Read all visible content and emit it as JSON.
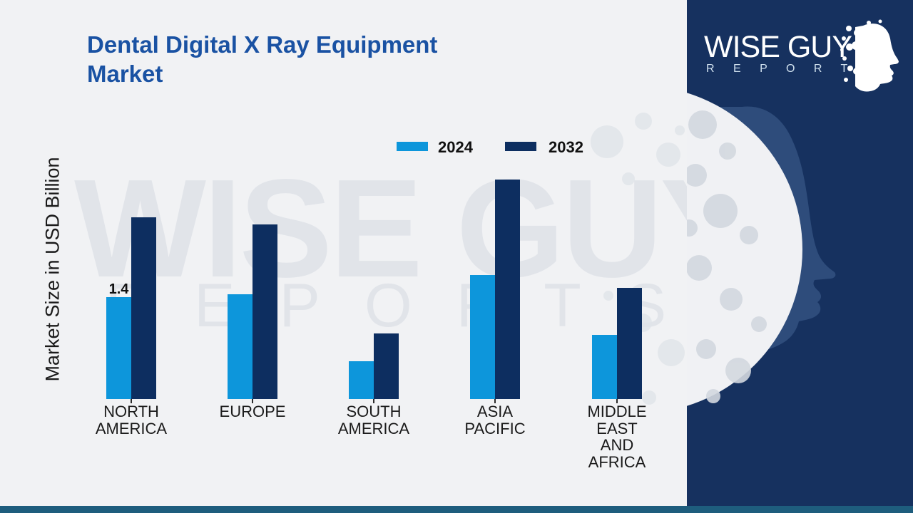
{
  "page": {
    "background": "#f1f2f4",
    "bottom_strip_color": "#1e5d7d",
    "panel_color": "#16315f"
  },
  "title": {
    "text": "Dental Digital X Ray Equipment Market",
    "line1": "Dental Digital X Ray Equipment",
    "line2": "Market",
    "color": "#1a52a3"
  },
  "y_axis_label": "Market Size in USD Billion",
  "legend": {
    "items": [
      {
        "label": "2024",
        "color": "#0d96db"
      },
      {
        "label": "2032",
        "color": "#0d2e60"
      }
    ]
  },
  "chart_data": {
    "type": "bar",
    "title": "Dental Digital X Ray Equipment Market",
    "ylabel": "Market Size in USD Billion",
    "unit": "USD Billion",
    "categories": [
      "NORTH AMERICA",
      "EUROPE",
      "SOUTH AMERICA",
      "ASIA PACIFIC",
      "MIDDLE EAST AND AFRICA"
    ],
    "category_lines": [
      [
        "NORTH",
        "AMERICA"
      ],
      [
        "EUROPE"
      ],
      [
        "SOUTH",
        "AMERICA"
      ],
      [
        "ASIA",
        "PACIFIC"
      ],
      [
        "MIDDLE",
        "EAST",
        "AND",
        "AFRICA"
      ]
    ],
    "series": [
      {
        "name": "2024",
        "color": "#0d96db",
        "values": [
          1.4,
          1.44,
          0.52,
          1.71,
          0.88
        ]
      },
      {
        "name": "2032",
        "color": "#0d2e60",
        "values": [
          2.5,
          2.4,
          0.9,
          3.02,
          1.53
        ]
      }
    ],
    "data_labels": [
      {
        "series": "2024",
        "category": "NORTH AMERICA",
        "text": "1.4"
      }
    ],
    "ylim": [
      0,
      3.5
    ],
    "grid": false,
    "axis_line": false,
    "legend_position": "top"
  },
  "watermark": {
    "line1": "WISE GUY",
    "line2": "REPORTS"
  },
  "logo": {
    "brand": "WISE GUY",
    "sub": "R E P O R T S"
  }
}
